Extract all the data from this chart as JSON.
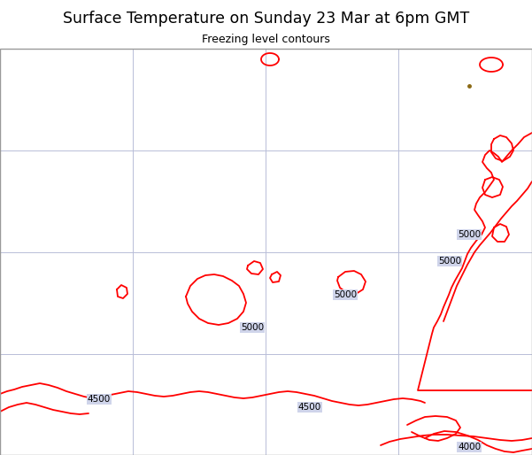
{
  "title": "Surface Temperature on Sunday 23 Mar at 6pm GMT",
  "subtitle": "Freezing level contours",
  "map_bg": "#cfd4ea",
  "title_bg": "#ffffff",
  "contour_color": "#ff0000",
  "grid_color": "#b8bdd8",
  "dot_color": "#8B6914",
  "label_fontsize": 7.5,
  "title_fontsize": 12.5,
  "subtitle_fontsize": 9,
  "lw": 1.3
}
